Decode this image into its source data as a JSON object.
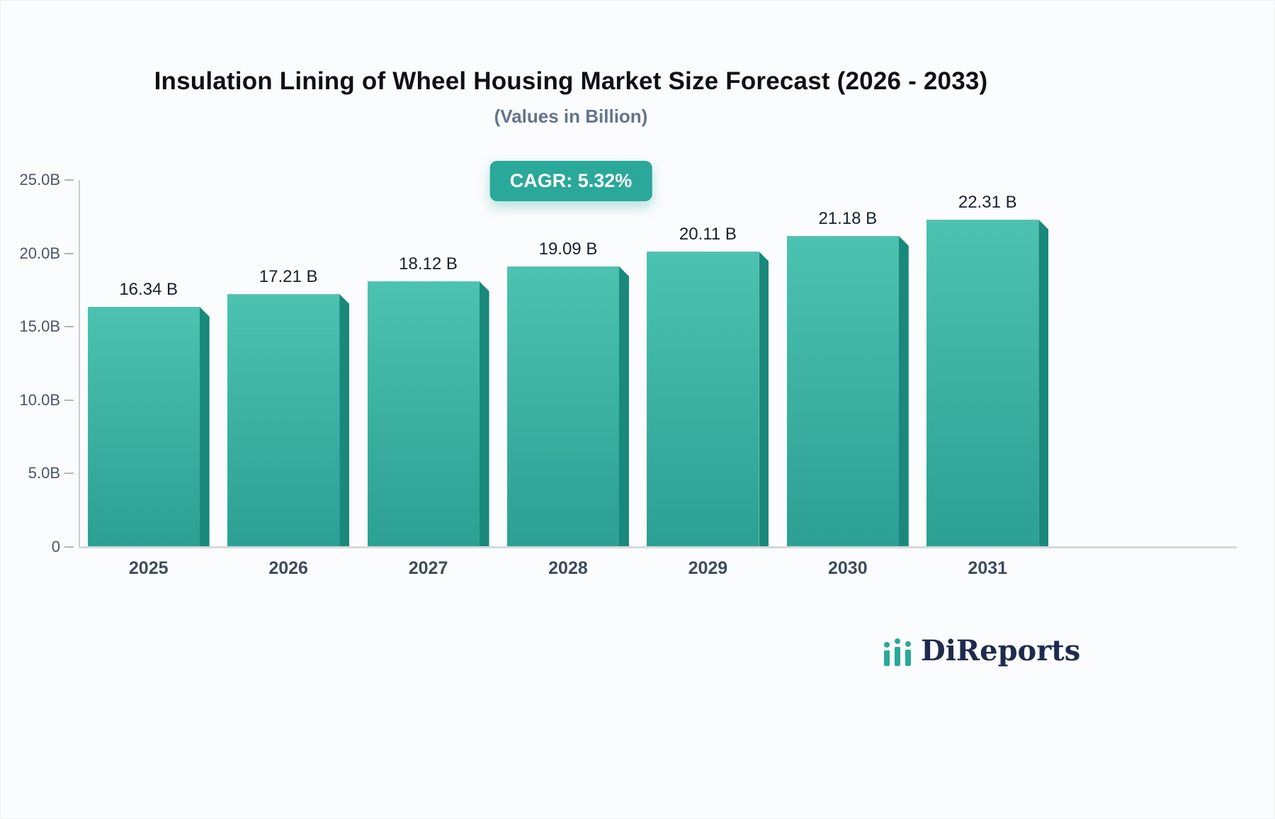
{
  "chart_data": {
    "type": "bar",
    "title": "Insulation Lining of Wheel Housing Market Size Forecast (2026 - 2033)",
    "subtitle": "(Values in Billion)",
    "badge": "CAGR: 5.32%",
    "categories": [
      "2025",
      "2026",
      "2027",
      "2028",
      "2029",
      "2030",
      "2031"
    ],
    "values": [
      16.34,
      17.21,
      18.12,
      19.09,
      20.11,
      21.18,
      22.31
    ],
    "value_labels": [
      "16.34 B",
      "17.21 B",
      "18.12 B",
      "19.09 B",
      "20.11 B",
      "21.18 B",
      "22.31 B"
    ],
    "xlabel": "",
    "ylabel": "",
    "ylim": [
      0,
      25
    ],
    "yticks": [
      "25.0B",
      "20.0B",
      "15.0B",
      "10.0B",
      "5.0B",
      "0"
    ],
    "ytick_values": [
      25,
      20,
      15,
      10,
      5,
      0
    ],
    "grid": false,
    "legend": null,
    "colors": {
      "bar_top": "#4CC2B0",
      "bar_bottom": "#2BA093",
      "bar_side": "#19897B",
      "badge_bg": "#2AA89A",
      "brand_navy": "#1E2B4D",
      "brand_teal": "#2AA89A"
    }
  },
  "brand": {
    "name": "DiReports",
    "icon": "bar-chart-logo-icon"
  }
}
